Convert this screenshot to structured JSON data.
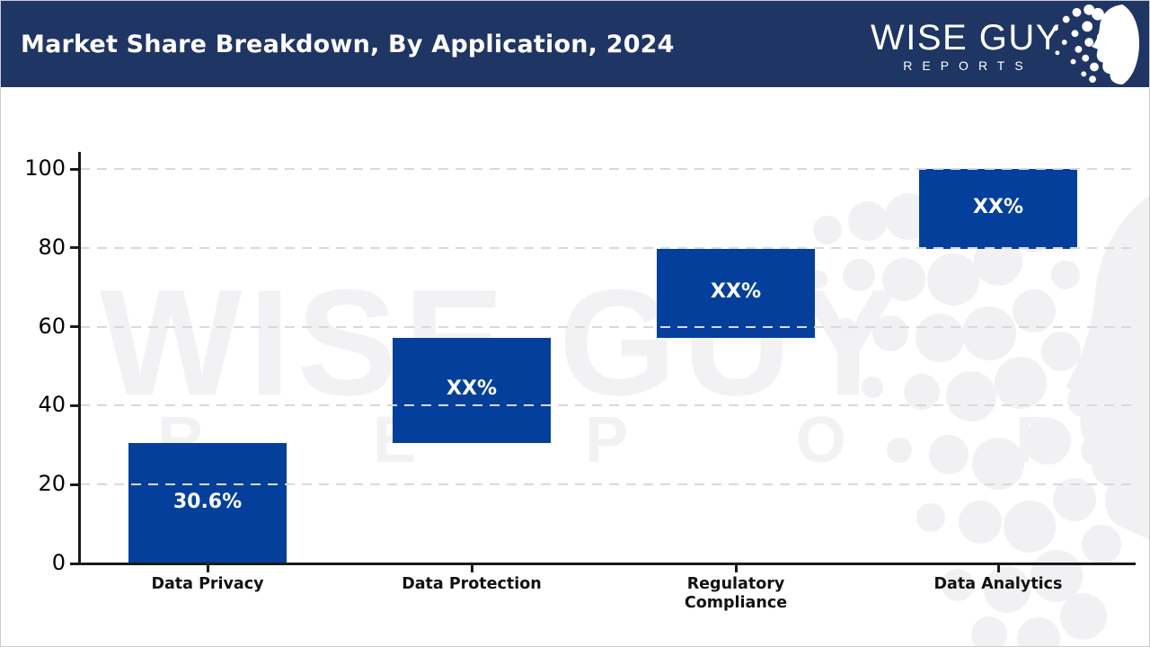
{
  "header": {
    "title": "Market Share Breakdown, By Application, 2024",
    "logo": {
      "line1": "WISE GUY",
      "line2": "REPORTS"
    }
  },
  "watermark": {
    "line1": "WISE GUY",
    "line2": "R E P O R T S"
  },
  "colors": {
    "header_bg": "#1f3564",
    "bar": "#04409b",
    "bar_label": "#ffffff",
    "axis": "#1a1a1a",
    "gridline": "#d9d9d9",
    "watermark": "#f2f2f5"
  },
  "chart_data": {
    "type": "bar",
    "subtype": "floating-waterfall",
    "title": "Market Share Breakdown, By Application, 2024",
    "categories": [
      "Data Privacy",
      "Data Protection",
      "Regulatory Compliance",
      "Data Analytics"
    ],
    "bars": [
      {
        "category": "Data Privacy",
        "start": 0,
        "end": 30.6,
        "label": "30.6%"
      },
      {
        "category": "Data Protection",
        "start": 30.6,
        "end": 57.2,
        "label": "XX%"
      },
      {
        "category": "Regulatory Compliance",
        "start": 57.2,
        "end": 79.8,
        "label": "XX%"
      },
      {
        "category": "Data Analytics",
        "start": 79.8,
        "end": 100,
        "label": "XX%"
      }
    ],
    "xlabel": "",
    "ylabel": "",
    "ylim": [
      0,
      100
    ],
    "yticks": [
      0,
      20,
      40,
      60,
      80,
      100
    ],
    "grid": "horizontal-dashed",
    "legend": "none"
  }
}
